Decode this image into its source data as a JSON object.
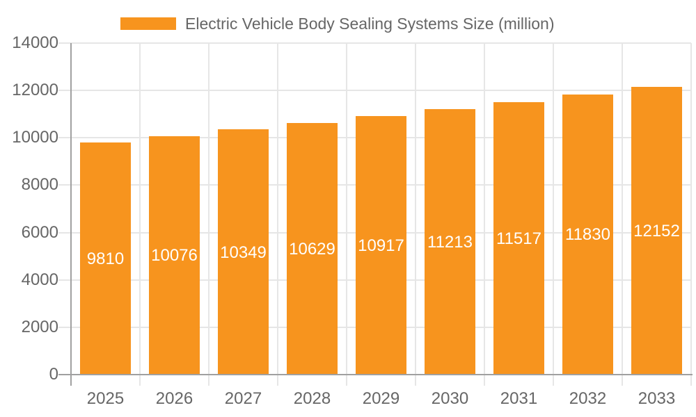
{
  "chart_data": {
    "type": "bar",
    "title": "Electric Vehicle Body Sealing Systems Size (million)",
    "categories": [
      "2025",
      "2026",
      "2027",
      "2028",
      "2029",
      "2030",
      "2031",
      "2032",
      "2033"
    ],
    "series": [
      {
        "name": "Electric Vehicle Body Sealing Systems Size (million)",
        "values": [
          9810,
          10076,
          10349,
          10629,
          10917,
          11213,
          11517,
          11830,
          12152
        ]
      }
    ],
    "values": [
      9810,
      10076,
      10349,
      10629,
      10917,
      11213,
      11517,
      11830,
      12152
    ],
    "value_labels": [
      "9810",
      "10076",
      "10349",
      "10629",
      "10917",
      "11213",
      "11517",
      "11830",
      "12152"
    ],
    "ylim": [
      0,
      14000
    ],
    "yticks": [
      0,
      2000,
      4000,
      6000,
      8000,
      10000,
      12000,
      14000
    ],
    "ytick_labels": [
      "0",
      "2000",
      "4000",
      "6000",
      "8000",
      "10000",
      "12000",
      "14000"
    ],
    "grid": true,
    "legend_position": "top",
    "colors": {
      "bar": "#F7941E",
      "value_label": "#FFFFFF",
      "axis_text": "#666666",
      "legend_text": "#666666",
      "gridline": "#E6E6E6",
      "axis_line": "#A0A0A0",
      "background": "#FFFFFF"
    }
  }
}
